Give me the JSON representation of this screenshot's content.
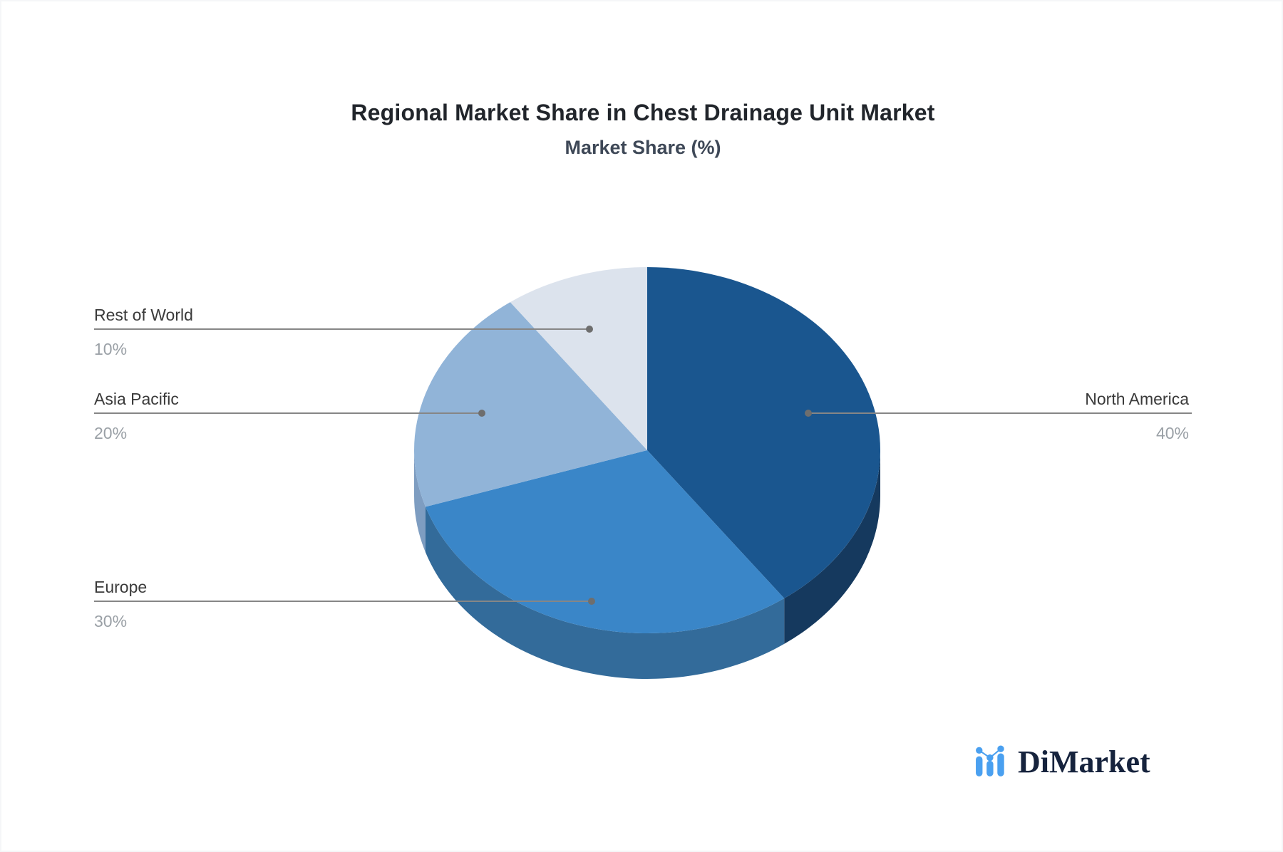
{
  "chart": {
    "title": "Regional Market Share in Chest Drainage Unit Market",
    "subtitle": "Market Share (%)"
  },
  "chart_data": {
    "type": "pie",
    "style": "pie3d",
    "title": "Regional Market Share in Chest Drainage Unit Market",
    "subtitle": "Market Share (%)",
    "unit": "%",
    "labels": [
      "North America",
      "Europe",
      "Asia Pacific",
      "Rest of World"
    ],
    "values": [
      40,
      30,
      20,
      10
    ],
    "colors": [
      "#1a568f",
      "#3a86c8",
      "#91b4d8",
      "#dce3ed"
    ],
    "side_colors": [
      "#15395e",
      "#336b9a",
      "#7e9dc1",
      null
    ],
    "start_angle": "12-oclock-clockwise",
    "legend_position": "callout-labels",
    "leader_line_color": "#868686",
    "leader_dot_color": "#6e6e6e"
  },
  "callouts": [
    {
      "label": "Rest of World",
      "value": "10%"
    },
    {
      "label": "Asia Pacific",
      "value": "20%"
    },
    {
      "label": "Europe",
      "value": "30%"
    },
    {
      "label": "North America",
      "value": "40%"
    }
  ],
  "logo": {
    "text": "DiMarket",
    "icon": "bar-line-chart-icon",
    "icon_color": "#4aa0f0",
    "text_color": "#16233d"
  }
}
